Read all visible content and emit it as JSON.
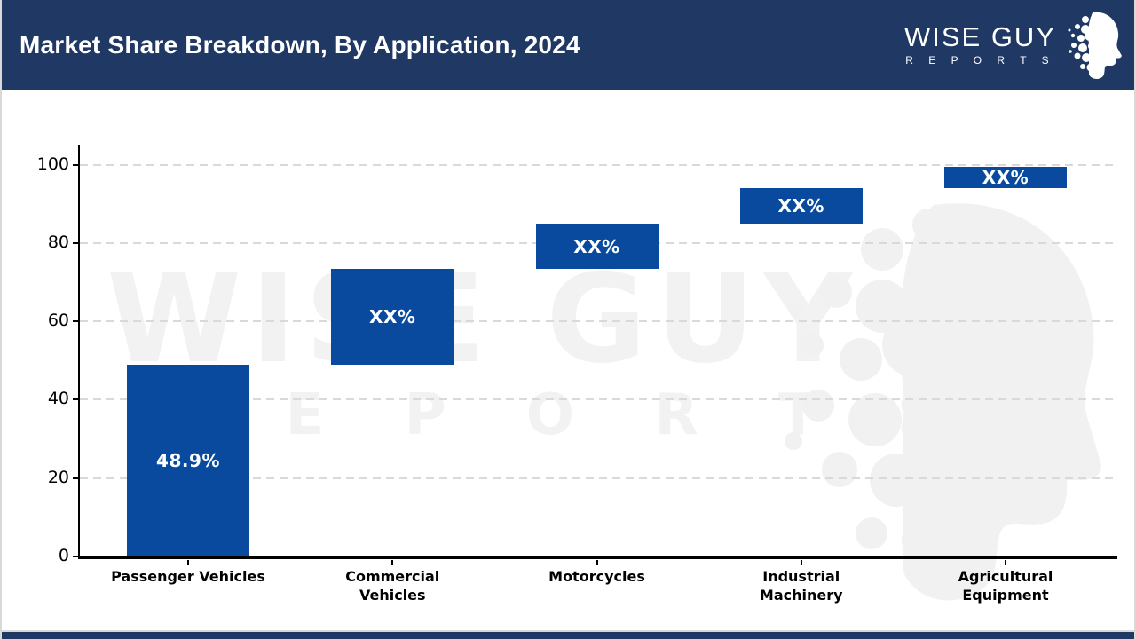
{
  "header": {
    "title": "Market Share Breakdown, By Application, 2024",
    "logo": {
      "line1": "WISE GUY",
      "line2": "R E P O R T S"
    }
  },
  "watermark": {
    "line1": "WISE GUY",
    "line2": "R E P O R T S"
  },
  "chart_data": {
    "type": "bar",
    "subtype": "waterfall",
    "title": "Market Share Breakdown, By Application, 2024",
    "categories": [
      "Passenger Vehicles",
      "Commercial Vehicles",
      "Motorcycles",
      "Industrial Machinery",
      "Agricultural Equipment"
    ],
    "category_lines": [
      [
        "Passenger Vehicles"
      ],
      [
        "Commercial",
        "Vehicles"
      ],
      [
        "Motorcycles"
      ],
      [
        "Industrial",
        "Machinery"
      ],
      [
        "Agricultural",
        "Equipment"
      ]
    ],
    "segments": [
      {
        "category": "Passenger Vehicles",
        "start": 0,
        "end": 48.9,
        "label": "48.9%"
      },
      {
        "category": "Commercial Vehicles",
        "start": 48.9,
        "end": 73.4,
        "label": "XX%"
      },
      {
        "category": "Motorcycles",
        "start": 73.4,
        "end": 84.9,
        "label": "XX%"
      },
      {
        "category": "Industrial Machinery",
        "start": 84.9,
        "end": 94.0,
        "label": "XX%"
      },
      {
        "category": "Agricultural Equipment",
        "start": 94.0,
        "end": 99.5,
        "label": "XX%"
      }
    ],
    "y_ticks": [
      0,
      20,
      40,
      60,
      80,
      100
    ],
    "ylim": [
      0,
      105
    ],
    "xlabel": "",
    "ylabel": "",
    "grid": "dashed-horizontal-at-y-ticks",
    "legend": "none",
    "bar_color": "#0a4a9e",
    "bar_label_color": "#ffffff",
    "header_color": "#203864"
  }
}
